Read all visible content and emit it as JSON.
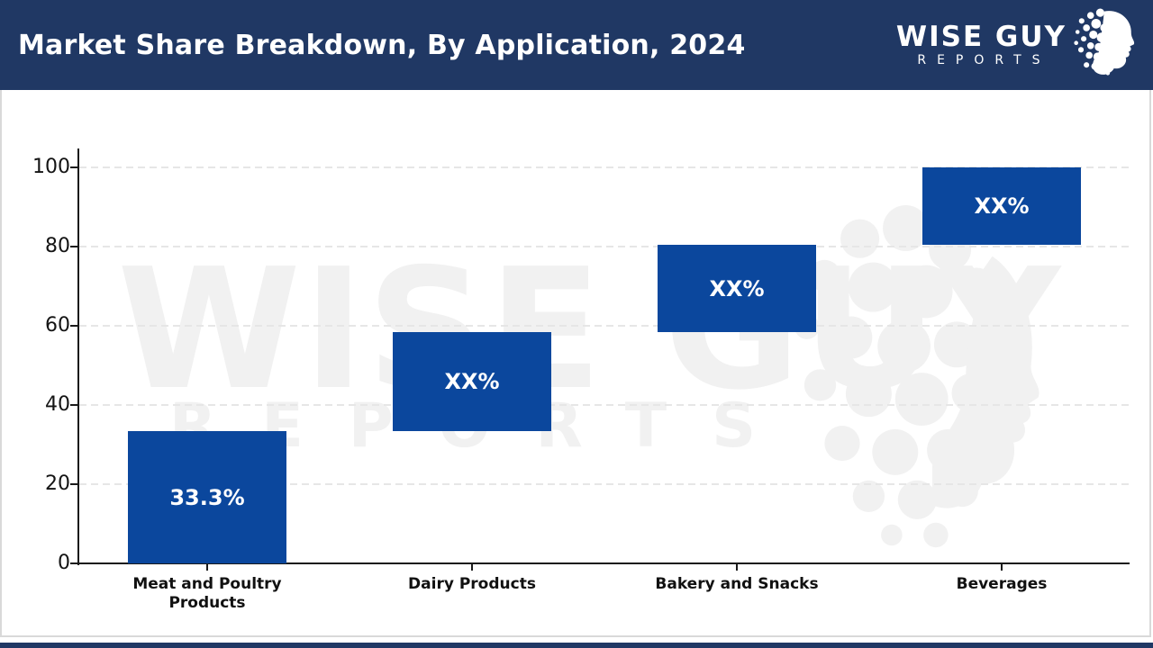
{
  "header": {
    "title": "Market Share Breakdown, By Application, 2024"
  },
  "logo": {
    "name_top": "WISE GUY",
    "name_bottom": "REPORTS"
  },
  "watermark": {
    "text_top": "WISE GUY",
    "text_bottom": "REPORTS"
  },
  "chart_data": {
    "type": "bar",
    "subtype": "waterfall-floating-bars",
    "title": "Market Share Breakdown, By Application, 2024",
    "categories": [
      "Meat and Poultry\nProducts",
      "Dairy Products",
      "Bakery and Snacks",
      "Beverages"
    ],
    "series": [
      {
        "name": "Market Share",
        "segments": [
          {
            "category": "Meat and Poultry Products",
            "start": 0,
            "end": 33.3,
            "label": "33.3%"
          },
          {
            "category": "Dairy Products",
            "start": 33.3,
            "end": 58.3,
            "label": "XX%"
          },
          {
            "category": "Bakery and Snacks",
            "start": 58.3,
            "end": 80.5,
            "label": "XX%"
          },
          {
            "category": "Beverages",
            "start": 80.5,
            "end": 100,
            "label": "XX%"
          }
        ]
      }
    ],
    "ylim": [
      0,
      105
    ],
    "yticks": [
      0,
      20,
      40,
      60,
      80,
      100
    ],
    "grid": "horizontal-dashed",
    "legend": "none"
  },
  "colors": {
    "header_bg": "#203864",
    "footer_bg": "#203864",
    "bar": "#0b479d",
    "axis": "#1a1a1a",
    "grid": "#e6e6e6",
    "watermark": "#f1f1f1",
    "page_border": "#d9d9d9",
    "bar_label": "#ffffff"
  }
}
